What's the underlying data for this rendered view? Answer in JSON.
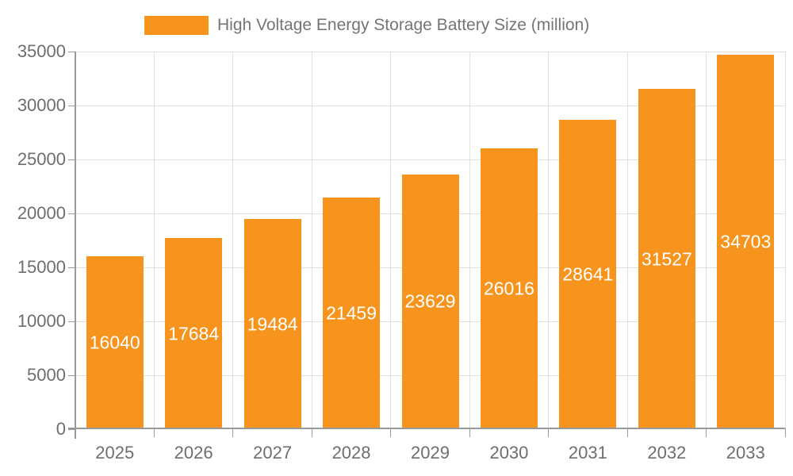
{
  "legend": {
    "label": "High Voltage Energy Storage Battery Size (million)"
  },
  "chart_data": {
    "type": "bar",
    "title": "High Voltage Energy Storage Battery Size (million)",
    "legend_label": "High Voltage Energy Storage Battery Size (million)",
    "legend_position": "top",
    "categories": [
      "2025",
      "2026",
      "2027",
      "2028",
      "2029",
      "2030",
      "2031",
      "2032",
      "2033"
    ],
    "values": [
      16040,
      17684,
      19484,
      21459,
      23629,
      26016,
      28641,
      31527,
      34703
    ],
    "xlabel": "",
    "ylabel": "",
    "ylim": [
      0,
      35000
    ],
    "yticks": [
      0,
      5000,
      10000,
      15000,
      20000,
      25000,
      30000,
      35000
    ],
    "grid": true,
    "bar_color": "#F7941E",
    "bar_label_color": "#FFFFFF",
    "grid_color": "#E0E0E0",
    "axis_color": "#999999",
    "tick_label_color": "#6E6E6E",
    "legend_text_color": "#757575"
  }
}
